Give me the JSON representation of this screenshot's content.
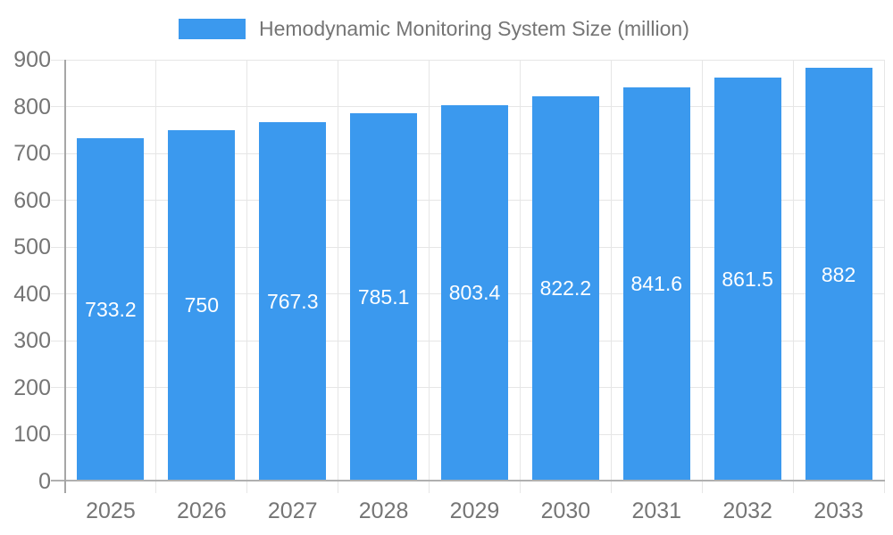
{
  "chart_data": {
    "type": "bar",
    "title": "Hemodynamic Monitoring System Size (million)",
    "categories": [
      "2025",
      "2026",
      "2027",
      "2028",
      "2029",
      "2030",
      "2031",
      "2032",
      "2033"
    ],
    "values": [
      733.2,
      750,
      767.3,
      785.1,
      803.4,
      822.2,
      841.6,
      861.5,
      882
    ],
    "value_labels": [
      "733.2",
      "750",
      "767.3",
      "785.1",
      "803.4",
      "822.2",
      "841.6",
      "861.5",
      "882"
    ],
    "xlabel": "",
    "ylabel": "",
    "ylim": [
      0,
      900
    ],
    "ytick_step": 100,
    "grid": true,
    "legend_position": "top",
    "colors": {
      "bar": "#3B99EE",
      "grid": "#E6E6E6",
      "baseline": "#B0B0B0",
      "y_axis": "#A6A6A6",
      "tick_label": "#757575",
      "value_label": "#FFFFFF",
      "legend_text": "#757575",
      "background": "#FFFFFF"
    }
  }
}
